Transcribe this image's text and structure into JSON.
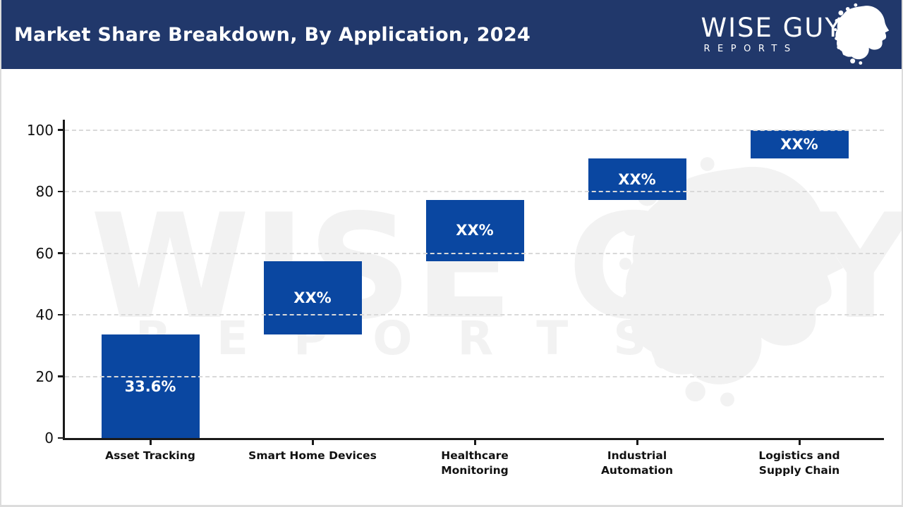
{
  "header": {
    "title": "Market Share Breakdown, By Application, 2024",
    "logo": {
      "line1": "WISE GUY",
      "line2": "REPORTS"
    }
  },
  "watermark": {
    "line1": "WISE GUY",
    "line2": "REPORTS"
  },
  "chart_data": {
    "type": "bar",
    "subtype": "floating-segment-waterfall",
    "title": "Market Share Breakdown, By Application, 2024",
    "categories": [
      "Asset Tracking",
      "Smart Home Devices",
      "Healthcare\nMonitoring",
      "Industrial\nAutomation",
      "Logistics and\nSupply Chain"
    ],
    "segments": [
      {
        "start": 0,
        "end": 33.6,
        "label": "33.6%"
      },
      {
        "start": 33.6,
        "end": 57.4,
        "label": "XX%"
      },
      {
        "start": 57.4,
        "end": 77.3,
        "label": "XX%"
      },
      {
        "start": 77.3,
        "end": 90.7,
        "label": "XX%"
      },
      {
        "start": 90.7,
        "end": 100,
        "label": "XX%"
      }
    ],
    "xlabel": "",
    "ylabel": "",
    "yticks": [
      0,
      20,
      40,
      60,
      80,
      100
    ],
    "ylim": [
      0,
      104
    ],
    "grid": "horizontal-dashed",
    "legend": "none",
    "bar_color": "#0a47a1",
    "bar_label_color": "#ffffff"
  },
  "colors": {
    "header_bg": "#21386b",
    "bar": "#0a47a1",
    "grid": "#d9d9d9",
    "axis": "#1a1a1a",
    "watermark": "#f2f2f2",
    "page_border": "#dcdcdc"
  }
}
